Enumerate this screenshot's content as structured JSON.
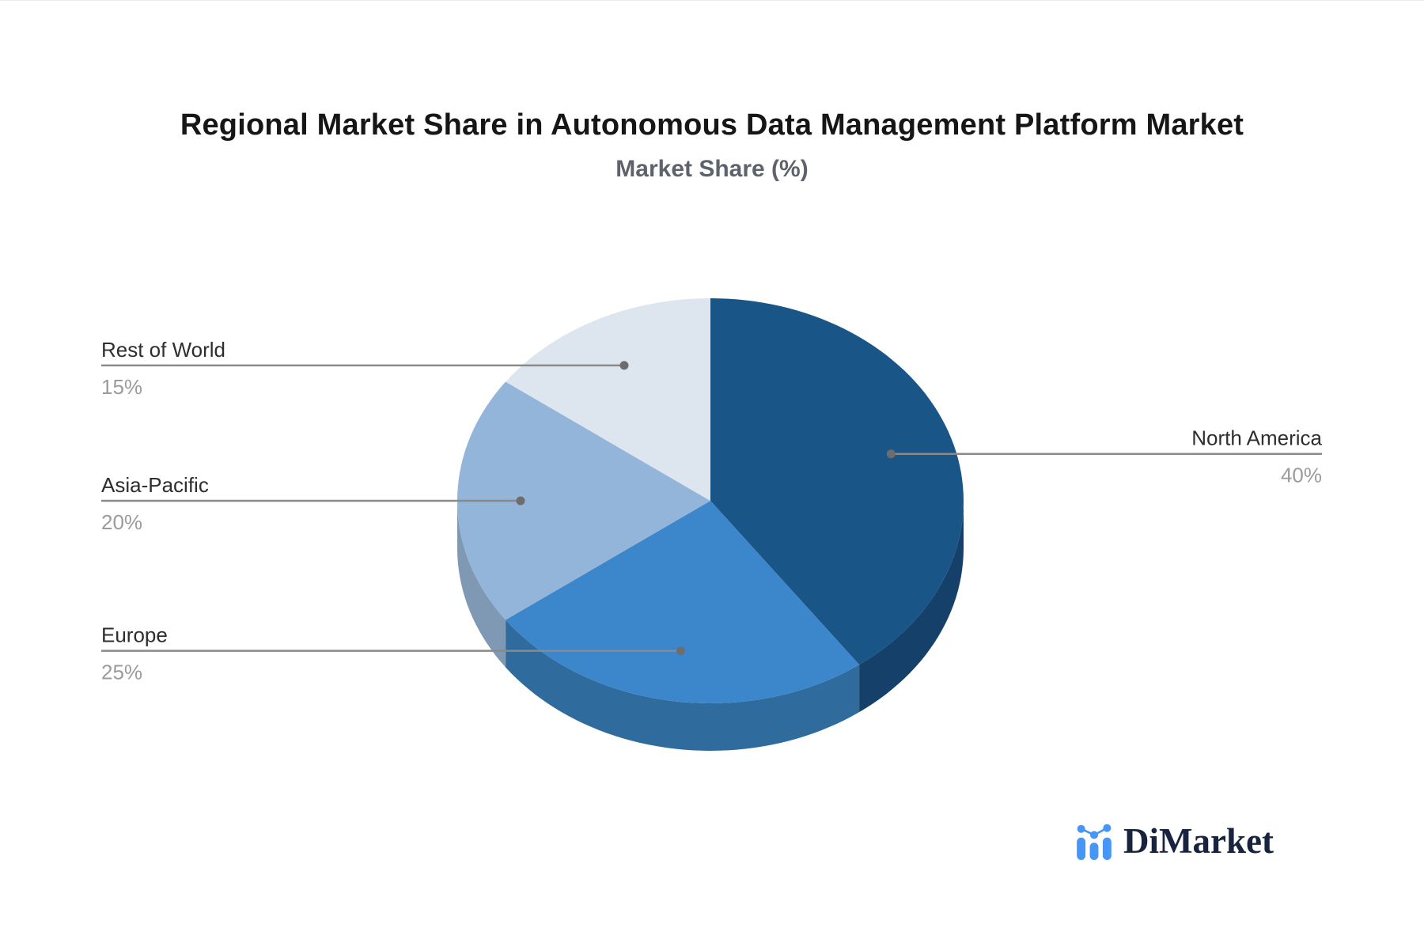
{
  "header": {
    "title": "Regional Market Share in Autonomous Data Management Platform Market",
    "subtitle": "Market Share (%)"
  },
  "chart_data": {
    "type": "pie",
    "style": "3d",
    "title": "Regional Market Share in Autonomous Data Management Platform Market",
    "subtitle": "Market Share (%)",
    "unit": "%",
    "start_angle_deg": 0,
    "direction": "clockwise",
    "legend_position": "none",
    "label_style": "leader-lines-with-percent",
    "categories": [
      "North America",
      "Europe",
      "Asia-Pacific",
      "Rest of World"
    ],
    "values": [
      40,
      25,
      20,
      15
    ],
    "slices": [
      {
        "label": "North America",
        "value": 40,
        "percent_label": "40%",
        "color": "#1A5587",
        "side_color": "#14406A",
        "label_side": "right"
      },
      {
        "label": "Europe",
        "value": 25,
        "percent_label": "25%",
        "color": "#3C87CB",
        "side_color": "#306B9D",
        "label_side": "left"
      },
      {
        "label": "Asia-Pacific",
        "value": 20,
        "percent_label": "20%",
        "color": "#93B5DA",
        "side_color": "#7F99B4",
        "label_side": "left"
      },
      {
        "label": "Rest of World",
        "value": 15,
        "percent_label": "15%",
        "color": "#DDE5EF",
        "side_color": "#C2CCDA",
        "label_side": "left"
      }
    ],
    "connector_color": "#8A8A8A",
    "dot_color": "#6D6D6D",
    "label_color": "#2E2E2E",
    "percent_color": "#9B9B9B"
  },
  "logo": {
    "text": "DiMarket",
    "icon": "bar-chart-logo-icon",
    "icon_color": "#4596F7",
    "text_color": "#17233F"
  }
}
